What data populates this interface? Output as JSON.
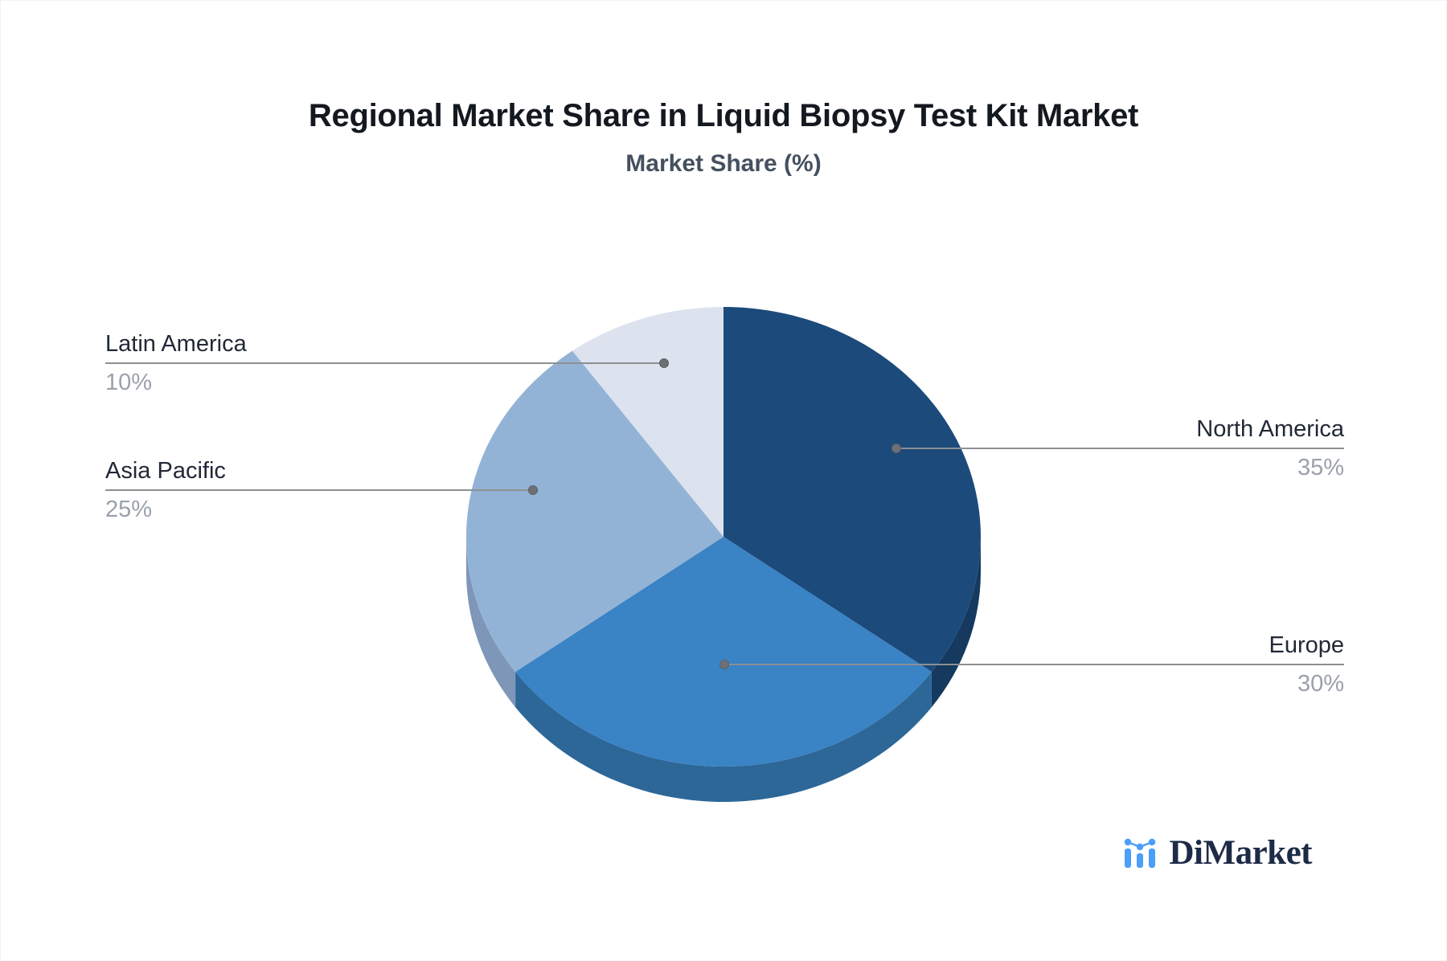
{
  "page": {
    "background": "#ffffff"
  },
  "header": {
    "title": "Regional Market Share in Liquid Biopsy Test Kit Market",
    "subtitle": "Market Share (%)"
  },
  "branding": {
    "logo_text": "DiMarket",
    "logo_icon": "bar-chart-with-trend-dots-icon",
    "logo_icon_color": "#4b9ef9",
    "logo_text_color": "#1d2b47"
  },
  "chart_data": {
    "type": "pie",
    "style": "3d",
    "title": "Regional Market Share in Liquid Biopsy Test Kit Market",
    "subtitle": "Market Share (%)",
    "unit": "%",
    "direction": "clockwise",
    "start_angle": "12-o-clock",
    "legend_position": "callout-labels",
    "slices": [
      {
        "label": "North America",
        "value": 35,
        "value_text": "35%",
        "color": "#1c4a7b",
        "side_color": "#15395f",
        "callout_side": "right"
      },
      {
        "label": "Europe",
        "value": 30,
        "value_text": "30%",
        "color": "#3a83c5",
        "side_color": "#2c6798",
        "callout_side": "right"
      },
      {
        "label": "Asia Pacific",
        "value": 25,
        "value_text": "25%",
        "color": "#93b3d6",
        "side_color": "#7e97b8",
        "callout_side": "left"
      },
      {
        "label": "Latin America",
        "value": 10,
        "value_text": "10%",
        "color": "#dce3ee",
        "side_color": "#c3cddc",
        "callout_side": "left"
      }
    ],
    "colors": {
      "title": "#14181f",
      "subtitle": "#45505e",
      "label_text": "#212936",
      "value_text": "#9aa1aa",
      "leader_line": "#8c9093",
      "leader_dot": "#6d7175"
    }
  }
}
